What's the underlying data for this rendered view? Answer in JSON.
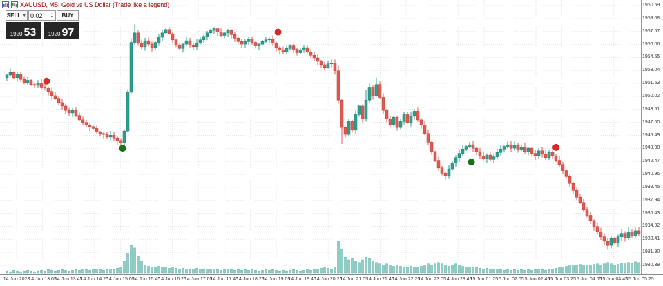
{
  "window": {
    "title": "XAUUSD, M5:  Gold vs US Dollar (Trade like a legend)"
  },
  "trade_panel": {
    "sell_label": "SELL",
    "buy_label": "BUY",
    "volume": "0.02",
    "sell_price_small": "1920",
    "sell_price_big": "53",
    "buy_price_small": "1920",
    "buy_price_big": "97"
  },
  "chart_data": {
    "type": "candlestick",
    "symbol": "XAUUSD",
    "timeframe": "M5",
    "first_open": 1952.2,
    "closes": [
      1952.5,
      1952.8,
      1952.2,
      1952.6,
      1952.0,
      1951.6,
      1951.9,
      1951.4,
      1951.3,
      1951.6,
      1951.1,
      1951.0,
      1950.6,
      1950.1,
      1949.8,
      1949.3,
      1948.9,
      1948.4,
      1948.1,
      1948.4,
      1947.8,
      1947.3,
      1947.0,
      1946.7,
      1946.5,
      1946.3,
      1945.9,
      1945.7,
      1945.6,
      1945.3,
      1945.5,
      1945.2,
      1944.9,
      1944.6,
      1946.0,
      1950.5,
      1956.3,
      1957.4,
      1956.2,
      1955.8,
      1956.5,
      1956.1,
      1955.7,
      1956.3,
      1956.9,
      1957.4,
      1957.8,
      1957.3,
      1956.6,
      1956.0,
      1955.6,
      1956.1,
      1956.5,
      1956.0,
      1955.8,
      1956.2,
      1956.6,
      1957.0,
      1957.4,
      1957.7,
      1957.9,
      1957.5,
      1957.1,
      1957.4,
      1957.7,
      1957.2,
      1956.8,
      1956.4,
      1956.1,
      1956.4,
      1956.7,
      1956.3,
      1955.9,
      1956.1,
      1956.4,
      1956.6,
      1956.7,
      1956.2,
      1955.7,
      1955.4,
      1955.2,
      1955.6,
      1955.9,
      1955.5,
      1955.1,
      1955.4,
      1955.7,
      1955.2,
      1954.8,
      1954.5,
      1954.1,
      1953.7,
      1953.4,
      1953.8,
      1953.9,
      1953.0,
      1949.6,
      1946.4,
      1945.6,
      1947.1,
      1946.1,
      1947.9,
      1948.9,
      1947.4,
      1949.6,
      1951.1,
      1950.1,
      1951.4,
      1949.9,
      1948.4,
      1947.4,
      1946.7,
      1947.6,
      1946.4,
      1947.1,
      1947.9,
      1947.0,
      1947.7,
      1948.3,
      1947.3,
      1946.7,
      1945.7,
      1944.7,
      1943.6,
      1942.6,
      1941.7,
      1941.1,
      1940.8,
      1941.6,
      1942.3,
      1942.9,
      1943.4,
      1943.9,
      1944.2,
      1944.4,
      1944.0,
      1943.6,
      1943.1,
      1942.8,
      1943.2,
      1942.7,
      1943.0,
      1943.5,
      1943.9,
      1944.2,
      1944.4,
      1944.0,
      1944.3,
      1943.8,
      1944.1,
      1943.6,
      1944.0,
      1943.4,
      1943.1,
      1943.7,
      1943.3,
      1942.9,
      1943.5,
      1943.1,
      1942.6,
      1942.1,
      1941.4,
      1940.7,
      1939.9,
      1939.1,
      1938.3,
      1937.7,
      1936.9,
      1936.2,
      1935.6,
      1934.9,
      1934.3,
      1933.7,
      1933.2,
      1932.7,
      1933.5,
      1933.0,
      1933.7,
      1934.1,
      1933.6,
      1934.3,
      1933.8,
      1934.4,
      1934.1
    ],
    "volumes": [
      3,
      2,
      4,
      3,
      2,
      3,
      4,
      3,
      2,
      3,
      4,
      3,
      5,
      4,
      3,
      4,
      5,
      4,
      3,
      4,
      5,
      4,
      6,
      5,
      4,
      5,
      6,
      5,
      4,
      5,
      6,
      5,
      7,
      8,
      18,
      30,
      42,
      38,
      26,
      18,
      12,
      10,
      9,
      8,
      10,
      9,
      8,
      7,
      8,
      7,
      6,
      7,
      6,
      5,
      6,
      7,
      6,
      5,
      6,
      5,
      6,
      5,
      4,
      5,
      6,
      5,
      4,
      5,
      4,
      5,
      4,
      5,
      4,
      3,
      4,
      5,
      4,
      5,
      4,
      3,
      4,
      3,
      4,
      5,
      4,
      3,
      4,
      5,
      4,
      5,
      6,
      7,
      8,
      7,
      6,
      9,
      48,
      36,
      24,
      20,
      22,
      18,
      16,
      20,
      24,
      22,
      18,
      16,
      14,
      12,
      14,
      12,
      10,
      12,
      10,
      9,
      8,
      10,
      9,
      8,
      10,
      12,
      14,
      12,
      14,
      16,
      14,
      12,
      10,
      12,
      14,
      12,
      10,
      9,
      8,
      9,
      8,
      7,
      6,
      7,
      6,
      5,
      6,
      5,
      4,
      5,
      4,
      5,
      4,
      5,
      4,
      5,
      4,
      5,
      6,
      5,
      4,
      5,
      6,
      7,
      8,
      9,
      10,
      12,
      11,
      12,
      13,
      12,
      11,
      12,
      13,
      14,
      12,
      14,
      16,
      14,
      12,
      13,
      15,
      14,
      16,
      15,
      17,
      16
    ],
    "wick_overrides": {
      "37": {
        "h": 1958.4
      },
      "96": {
        "h": 1953.6
      },
      "97": {
        "l": 1944.5
      },
      "104": {
        "h": 1950.8
      },
      "107": {
        "h": 1952.2
      },
      "174": {
        "l": 1932.2
      }
    },
    "signals": [
      {
        "index": 11.5,
        "price": 1951.8,
        "type": "sell"
      },
      {
        "index": 33.5,
        "price": 1944.0,
        "type": "buy"
      },
      {
        "index": 78.5,
        "price": 1957.5,
        "type": "sell"
      },
      {
        "index": 134.5,
        "price": 1942.4,
        "type": "buy"
      },
      {
        "index": 159.0,
        "price": 1944.1,
        "type": "sell"
      }
    ],
    "price_axis": [
      "1960.59",
      "1959.08",
      "1957.57",
      "1956.06",
      "1954.55",
      "1953.04",
      "1951.53",
      "1950.02",
      "1948.51",
      "1947.00",
      "1945.49",
      "1943.98",
      "1942.47",
      "1940.96",
      "1939.45",
      "1937.94",
      "1936.43",
      "1934.92",
      "1933.41",
      "1931.90",
      "1930.39"
    ],
    "time_axis": [
      "14 Jun 2023",
      "14 Jun 13:05",
      "14 Jun 13:45",
      "14 Jun 14:25",
      "14 Jun 15:05",
      "14 Jun 15:45",
      "14 Jun 16:25",
      "14 Jun 17:05",
      "14 Jun 17:45",
      "14 Jun 18:25",
      "14 Jun 19:05",
      "14 Jun 19:45",
      "14 Jun 20:25",
      "14 Jun 21:05",
      "14 Jun 21:45",
      "14 Jun 22:25",
      "14 Jun 23:05",
      "14 Jun 23:45",
      "15 Jun 01:25",
      "15 Jun 02:05",
      "15 Jun 02:45",
      "15 Jun 03:25",
      "15 Jun 04:05",
      "15 Jun 04:45",
      "15 Jun 05:25"
    ],
    "colors": {
      "up": "#2f9e8f",
      "up_border": "#1d7c6f",
      "down": "#e05a52",
      "down_border": "#c03a34",
      "volume": "#8ecfc6",
      "volume_border": "#57aca2",
      "grid": "#e6e6e6",
      "sell_signal": "#d62b2b",
      "buy_signal": "#147314",
      "axis_text": "#3c3c3c",
      "title": "#990000"
    }
  }
}
